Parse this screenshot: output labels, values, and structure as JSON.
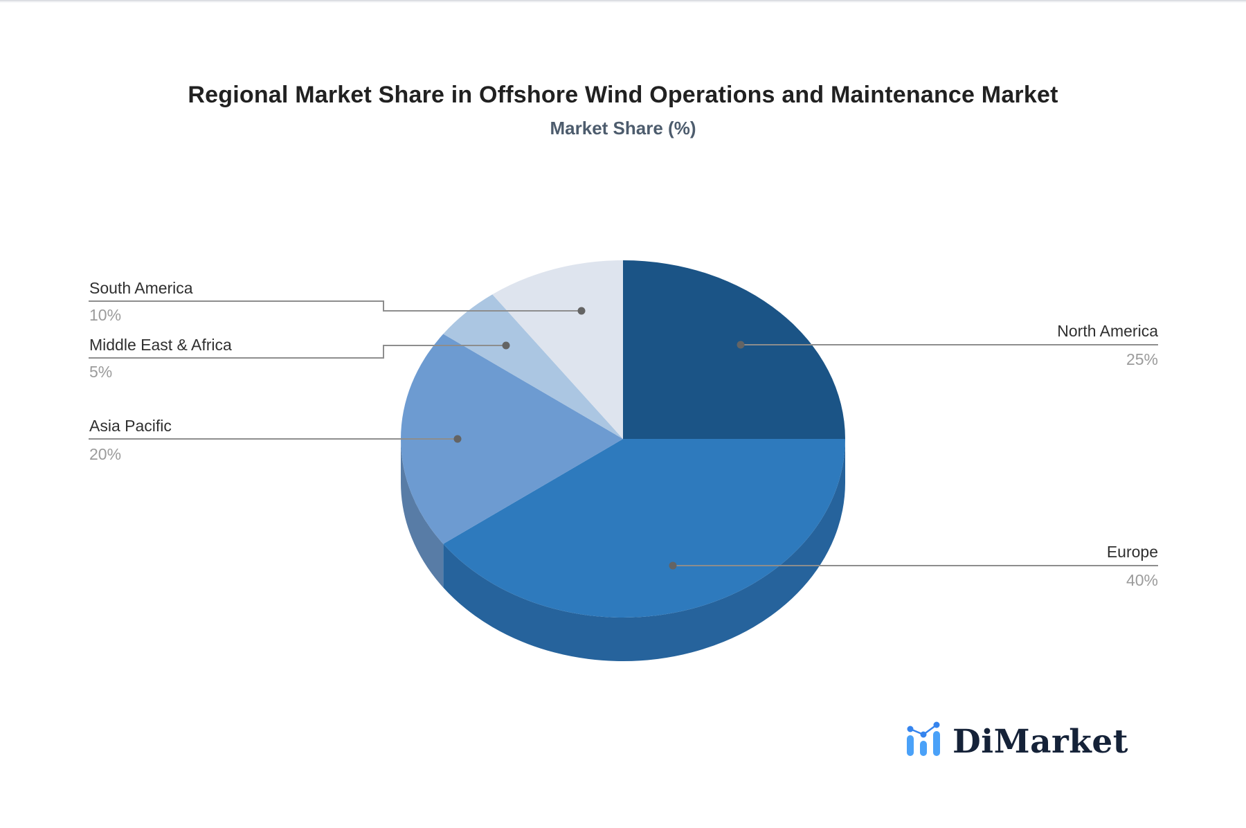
{
  "header": {
    "title": "Regional Market Share in Offshore Wind Operations and Maintenance Market",
    "subtitle": "Market Share (%)"
  },
  "chart_data": {
    "type": "pie",
    "style": "3d",
    "title": "Regional Market Share in Offshore Wind Operations and Maintenance Market",
    "subtitle": "Market Share (%)",
    "unit": "%",
    "start_angle_deg": 90,
    "direction": "clockwise",
    "labels": [
      "North America",
      "Europe",
      "Asia Pacific",
      "Middle East & Africa",
      "South America"
    ],
    "values": [
      25,
      40,
      20,
      5,
      10
    ],
    "value_labels": [
      "25%",
      "40%",
      "20%",
      "5%",
      "10%"
    ],
    "colors": [
      "#1b5486",
      "#2e7abd",
      "#6d9bd1",
      "#abc6e2",
      "#dee4ee"
    ],
    "side_colors": [
      "#154268",
      "#26639c",
      "#587ca6",
      "#8aa8c6",
      "#b9c4d3"
    ],
    "legend_position": "callouts",
    "leader_line_color": "#8d8d8d",
    "leader_dot_color": "#646464"
  },
  "logo": {
    "text": "DiMarket",
    "icon": "bar-line-chart-icon",
    "text_color": "#152238",
    "bar_color": "#4aa1f8",
    "dot_color": "#3584ee"
  }
}
